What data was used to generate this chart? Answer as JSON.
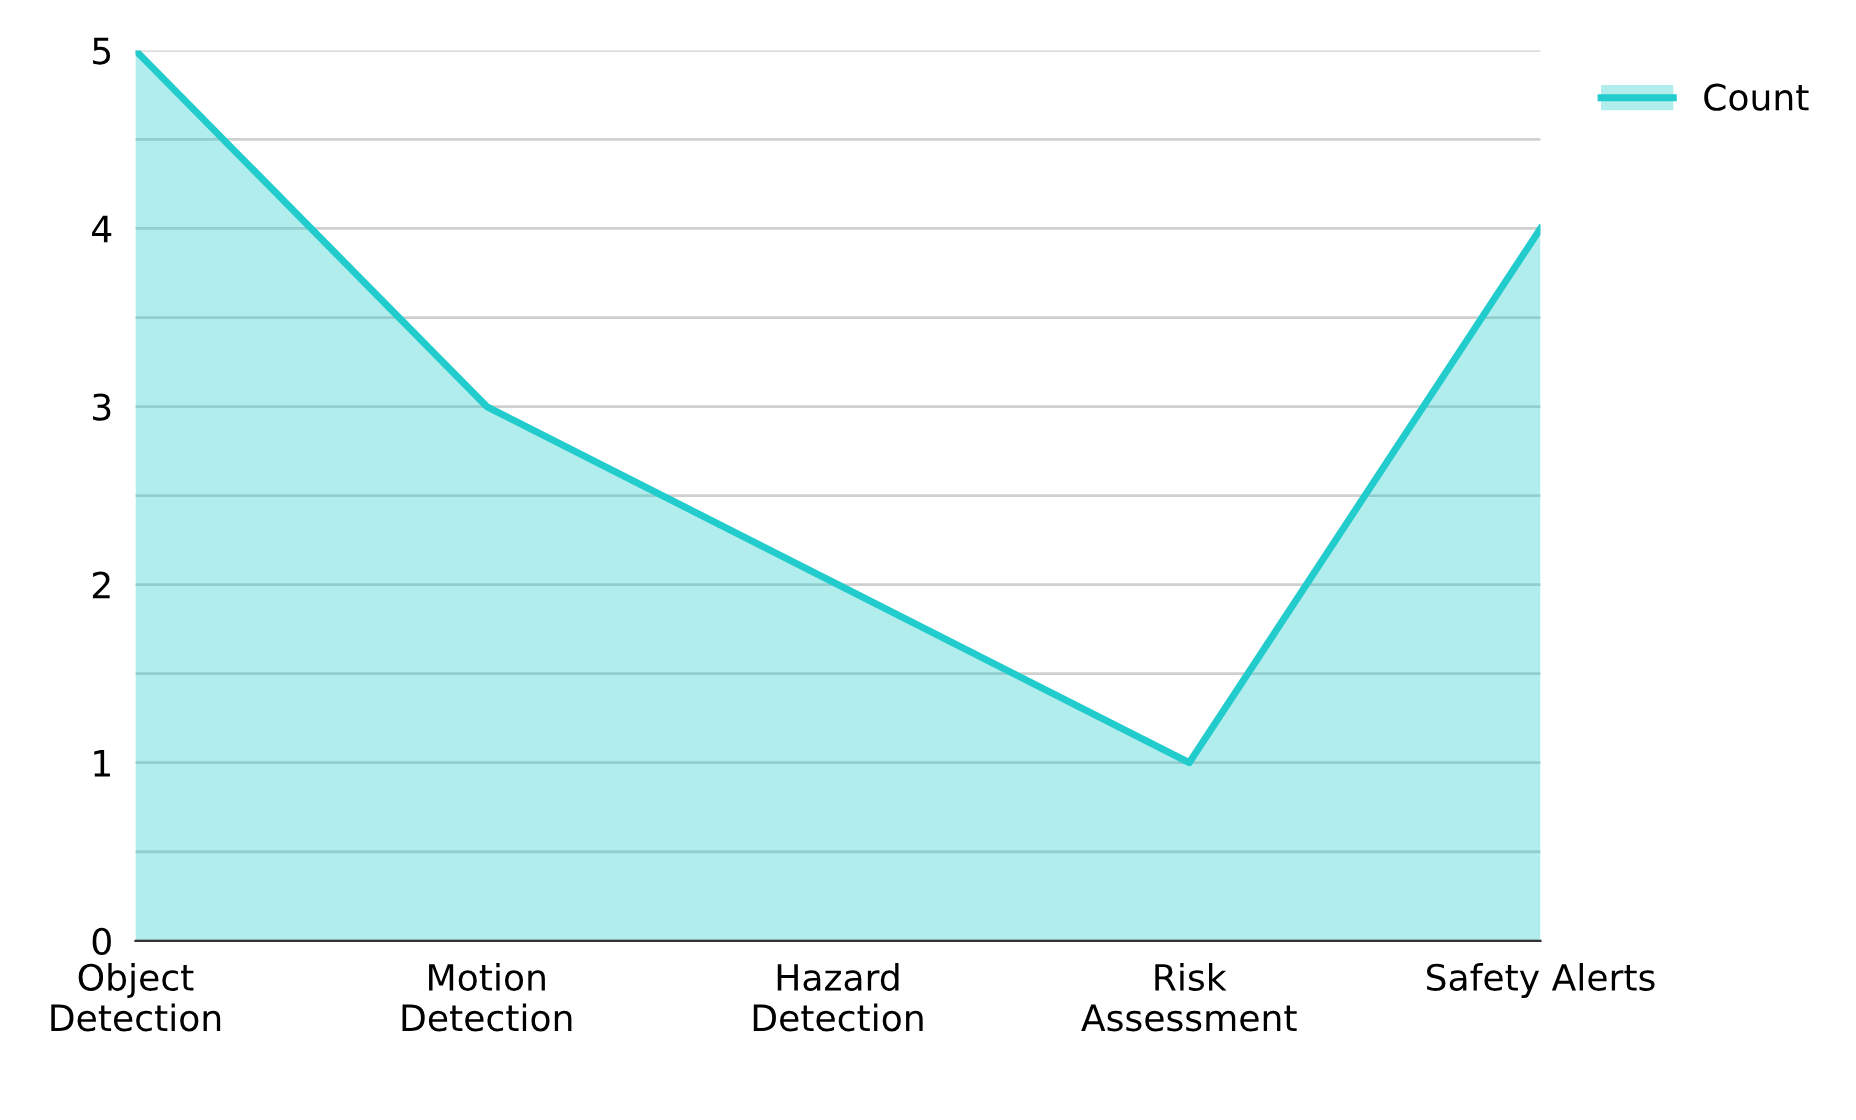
{
  "chart_data": {
    "type": "area",
    "categories": [
      "Object\nDetection",
      "Motion\nDetection",
      "Hazard\nDetection",
      "Risk\nAssessment",
      "Safety Alerts"
    ],
    "series": [
      {
        "name": "Count",
        "color": "#22cccc",
        "values": [
          5,
          3,
          2,
          1,
          4
        ]
      }
    ],
    "ylim": [
      0,
      5
    ],
    "yticks": [
      0,
      {
        "value": 0.5,
        "label": null
      },
      1,
      {
        "value": 1.5,
        "label": null
      },
      2,
      {
        "value": 2.5,
        "label": null
      },
      3,
      {
        "value": 3.5,
        "label": null
      },
      4,
      {
        "value": 4.5,
        "label": null
      },
      5
    ],
    "grid": "y",
    "legend": "top right"
  }
}
